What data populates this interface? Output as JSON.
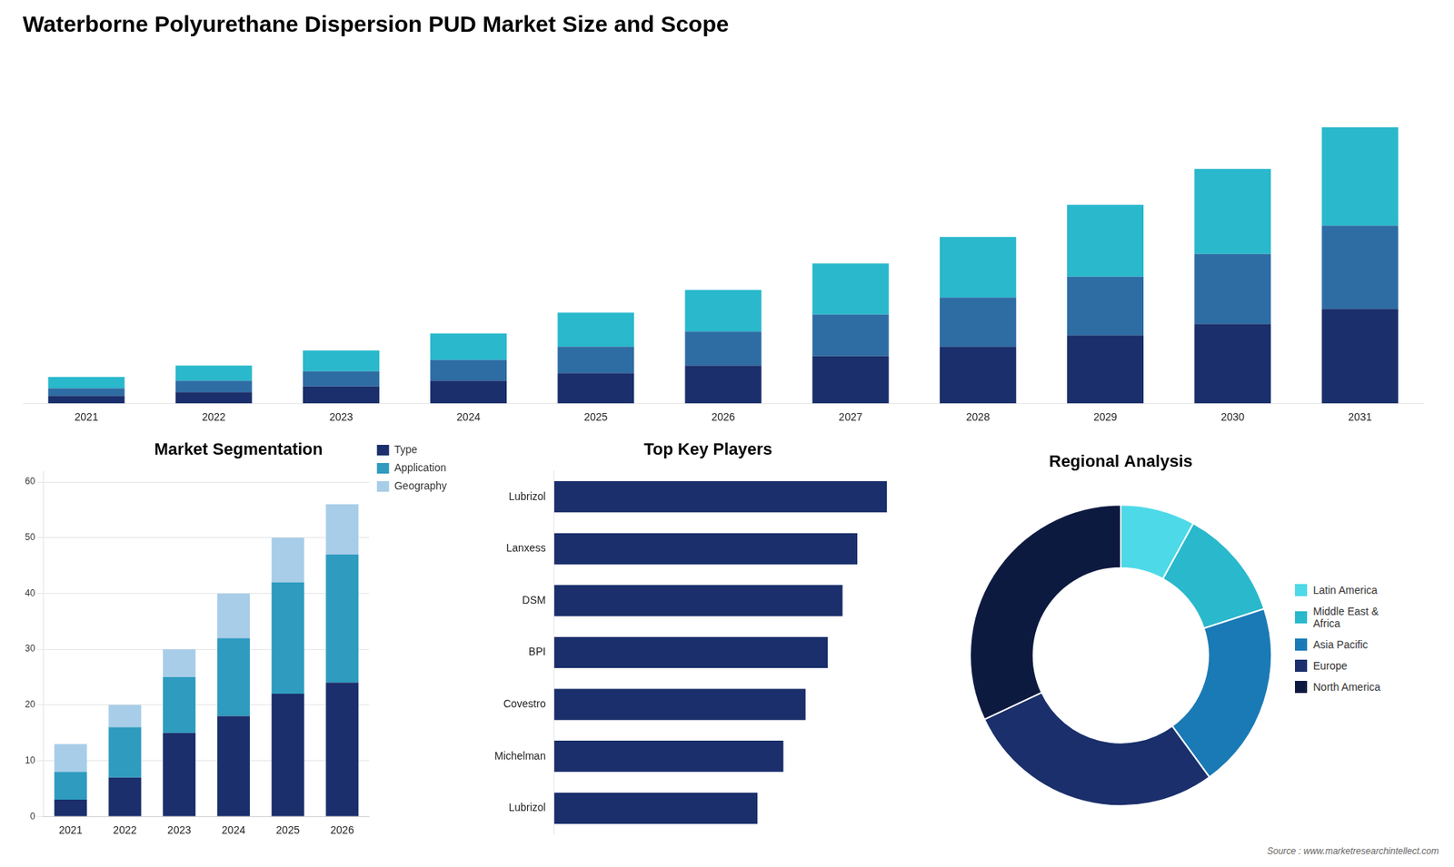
{
  "chart_data": [
    {
      "type": "bar",
      "title": "Waterborne Polyurethane Dispersion PUD Market Size and Scope",
      "categories": [
        "2021",
        "2022",
        "2023",
        "2024",
        "2025",
        "2026",
        "2027",
        "2028",
        "2029",
        "2030",
        "2031"
      ],
      "series": [
        {
          "color": "#1a2f6b",
          "values": [
            2,
            3,
            4.5,
            6,
            8,
            10,
            12.5,
            15,
            18,
            21,
            25
          ]
        },
        {
          "color": "#2e6da4",
          "values": [
            2,
            3,
            4,
            5.5,
            7,
            9,
            11,
            13,
            15.5,
            18.5,
            22
          ]
        },
        {
          "color": "#29b8cc",
          "values": [
            3,
            4,
            5.5,
            7,
            9,
            11,
            13.5,
            16,
            19,
            22.5,
            26
          ]
        }
      ],
      "stacked": true,
      "ylim": [
        0,
        93.44
      ],
      "grid": false,
      "tick_labels": "x"
    },
    {
      "type": "bar",
      "title": "Market Segmentation",
      "categories": [
        "2021",
        "2022",
        "2023",
        "2024",
        "2025",
        "2026"
      ],
      "series": [
        {
          "name": "Type",
          "color": "#1a2f6b",
          "values": [
            3,
            7,
            15,
            18,
            22,
            24
          ]
        },
        {
          "name": "Application",
          "color": "#2e9bbf",
          "values": [
            5,
            9,
            10,
            14,
            20,
            23
          ]
        },
        {
          "name": "Geography",
          "color": "#a8cde8",
          "values": [
            5,
            4,
            5,
            8,
            8,
            9
          ]
        }
      ],
      "stacked": true,
      "ylim": [
        0,
        62
      ],
      "yticks": [
        0,
        10,
        20,
        30,
        40,
        50,
        60
      ],
      "grid": true,
      "legend": "right"
    },
    {
      "type": "bar",
      "title": "Top Key Players",
      "orientation": "horizontal",
      "categories": [
        "Lubrizol",
        "Lanxess",
        "DSM",
        "BPI",
        "Covestro",
        "Michelman",
        "Lubrizol"
      ],
      "values": [
        9.0,
        8.2,
        7.8,
        7.4,
        6.8,
        6.2,
        5.5
      ],
      "color": "#1a2f6b",
      "xlim": [
        0,
        10
      ],
      "grid": false,
      "tick_labels": "y"
    },
    {
      "type": "doughnut",
      "title": "Regional Analysis",
      "categories": [
        "Latin America",
        "Middle East &\nAfrica",
        "Asia Pacific",
        "Europe",
        "North America"
      ],
      "values": [
        8,
        12,
        20,
        28,
        32
      ],
      "colors": [
        "#4dd9e8",
        "#29b8cc",
        "#1a7ab5",
        "#1a2f6b",
        "#0d1a40"
      ],
      "legend": "right",
      "annotations": [
        "Source : www.marketresearchintellect.com"
      ]
    }
  ]
}
